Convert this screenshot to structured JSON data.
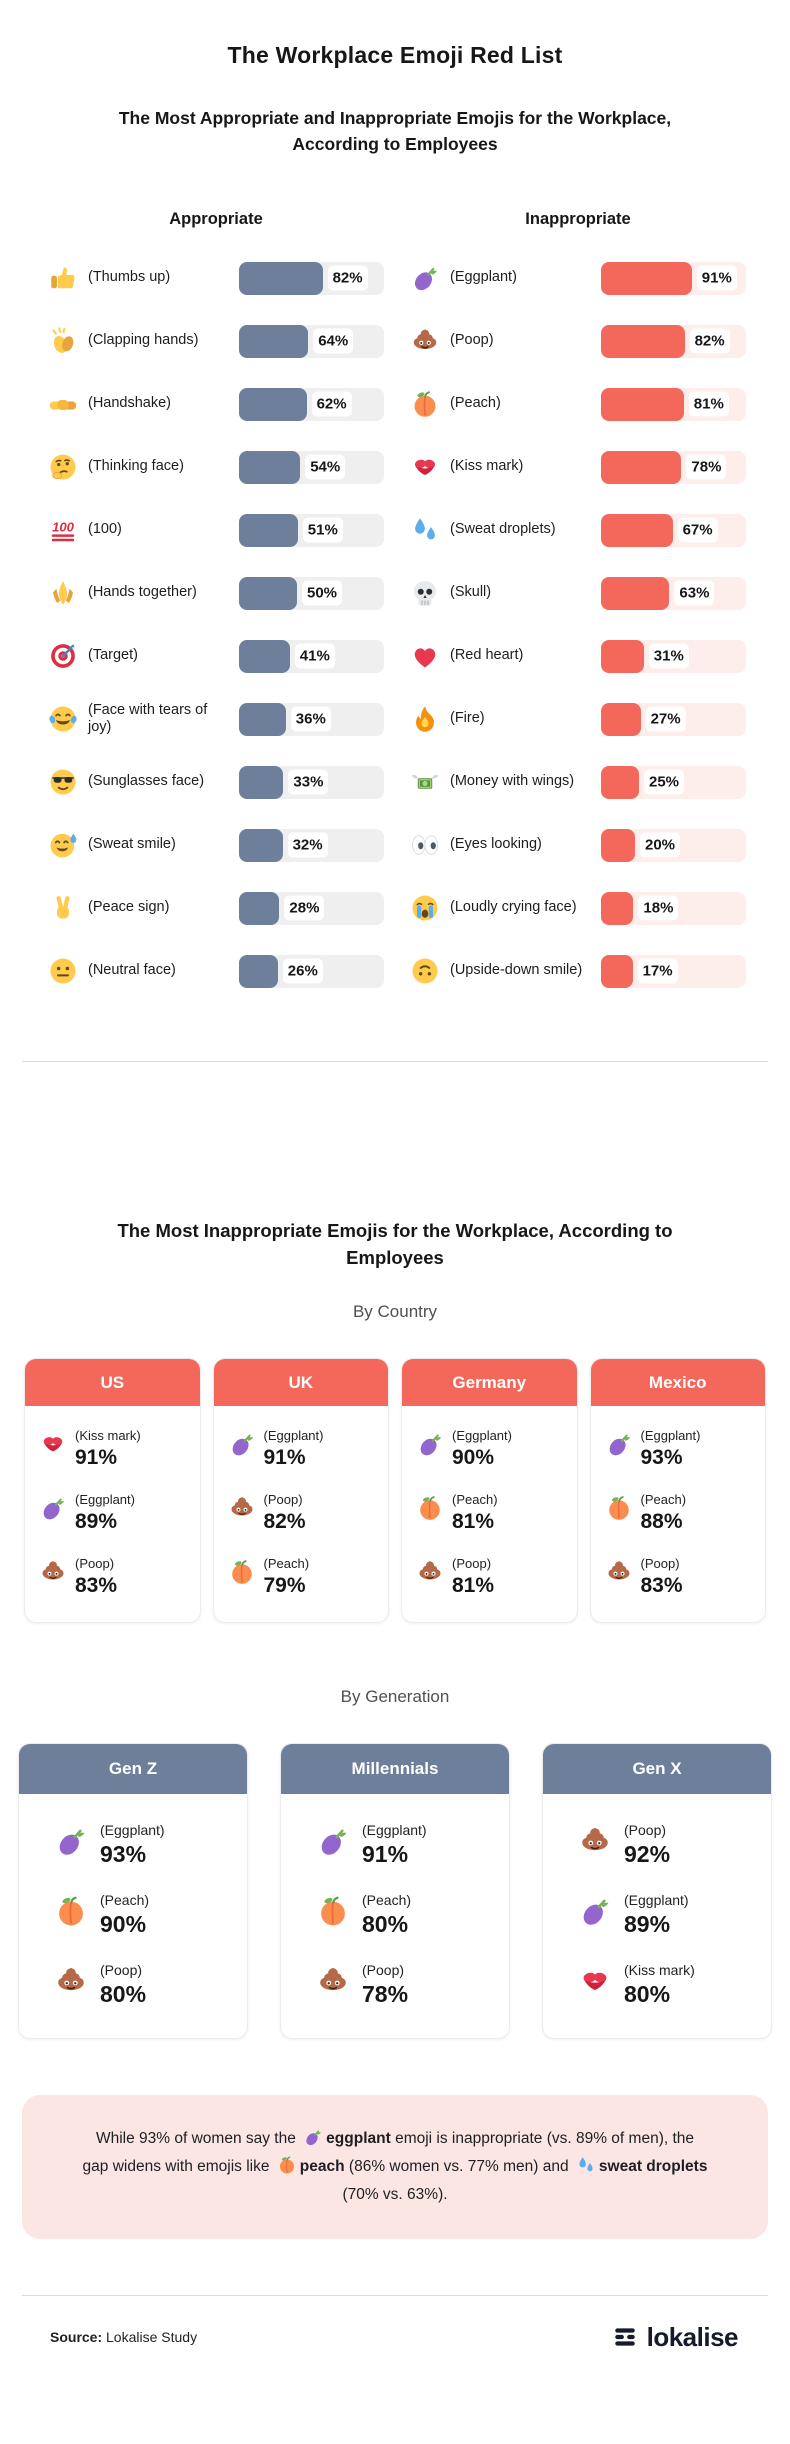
{
  "header": {
    "title": "The Workplace Emoji Red List",
    "subtitle": "The Most Appropriate and Inappropriate Emojis for the Workplace, According to Employees"
  },
  "section2": {
    "title": "The Most Inappropriate Emojis for the Workplace, According to Employees"
  },
  "chart_data": [
    {
      "type": "bar",
      "title": "Appropriate",
      "orientation": "horizontal",
      "unit": "percent",
      "xlim": [
        0,
        100
      ],
      "categories": [
        "Thumbs up",
        "Clapping hands",
        "Handshake",
        "Thinking face",
        "100",
        "Hands together",
        "Target",
        "Face with tears of joy",
        "Sunglasses face",
        "Sweat smile",
        "Peace sign",
        "Neutral face"
      ],
      "values": [
        82,
        64,
        62,
        54,
        51,
        50,
        41,
        36,
        33,
        32,
        28,
        26
      ],
      "rows": [
        {
          "icon": "thumbs-up",
          "label": "(Thumbs up)",
          "value": 82,
          "pct": "82%"
        },
        {
          "icon": "clapping-hands",
          "label": "(Clapping hands)",
          "value": 64,
          "pct": "64%"
        },
        {
          "icon": "handshake",
          "label": "(Handshake)",
          "value": 62,
          "pct": "62%"
        },
        {
          "icon": "thinking-face",
          "label": "(Thinking face)",
          "value": 54,
          "pct": "54%"
        },
        {
          "icon": "hundred",
          "label": "(100)",
          "value": 51,
          "pct": "51%"
        },
        {
          "icon": "hands-together",
          "label": "(Hands together)",
          "value": 50,
          "pct": "50%"
        },
        {
          "icon": "target",
          "label": "(Target)",
          "value": 41,
          "pct": "41%"
        },
        {
          "icon": "face-tears-of-joy",
          "label": "(Face with tears of joy)",
          "value": 36,
          "pct": "36%"
        },
        {
          "icon": "sunglasses-face",
          "label": "(Sunglasses face)",
          "value": 33,
          "pct": "33%"
        },
        {
          "icon": "sweat-smile",
          "label": "(Sweat smile)",
          "value": 32,
          "pct": "32%"
        },
        {
          "icon": "peace-sign",
          "label": "(Peace sign)",
          "value": 28,
          "pct": "28%"
        },
        {
          "icon": "neutral-face",
          "label": "(Neutral face)",
          "value": 26,
          "pct": "26%"
        }
      ]
    },
    {
      "type": "bar",
      "title": "Inappropriate",
      "orientation": "horizontal",
      "unit": "percent",
      "xlim": [
        0,
        100
      ],
      "categories": [
        "Eggplant",
        "Poop",
        "Peach",
        "Kiss mark",
        "Sweat droplets",
        "Skull",
        "Red heart",
        "Fire",
        "Money with wings",
        "Eyes looking",
        "Loudly crying face",
        "Upside-down smile"
      ],
      "values": [
        91,
        82,
        81,
        78,
        67,
        63,
        31,
        27,
        25,
        20,
        18,
        17
      ],
      "rows": [
        {
          "icon": "eggplant",
          "label": "(Eggplant)",
          "value": 91,
          "pct": "91%"
        },
        {
          "icon": "poop",
          "label": "(Poop)",
          "value": 82,
          "pct": "82%"
        },
        {
          "icon": "peach",
          "label": "(Peach)",
          "value": 81,
          "pct": "81%"
        },
        {
          "icon": "kiss-mark",
          "label": "(Kiss mark)",
          "value": 78,
          "pct": "78%"
        },
        {
          "icon": "sweat-droplets",
          "label": "(Sweat droplets)",
          "value": 67,
          "pct": "67%"
        },
        {
          "icon": "skull",
          "label": "(Skull)",
          "value": 63,
          "pct": "63%"
        },
        {
          "icon": "red-heart",
          "label": "(Red heart)",
          "value": 31,
          "pct": "31%"
        },
        {
          "icon": "fire",
          "label": "(Fire)",
          "value": 27,
          "pct": "27%"
        },
        {
          "icon": "money-with-wings",
          "label": "(Money with wings)",
          "value": 25,
          "pct": "25%"
        },
        {
          "icon": "eyes-looking",
          "label": "(Eyes looking)",
          "value": 20,
          "pct": "20%"
        },
        {
          "icon": "loudly-crying-face",
          "label": "(Loudly crying face)",
          "value": 18,
          "pct": "18%"
        },
        {
          "icon": "upside-down-smile",
          "label": "(Upside-down smile)",
          "value": 17,
          "pct": "17%"
        }
      ]
    },
    {
      "type": "table",
      "title": "By Country",
      "groups": [
        {
          "name": "US",
          "items": [
            {
              "icon": "kiss-mark",
              "label": "(Kiss mark)",
              "value": 91,
              "pct": "91%"
            },
            {
              "icon": "eggplant",
              "label": "(Eggplant)",
              "value": 89,
              "pct": "89%"
            },
            {
              "icon": "poop",
              "label": "(Poop)",
              "value": 83,
              "pct": "83%"
            }
          ]
        },
        {
          "name": "UK",
          "items": [
            {
              "icon": "eggplant",
              "label": "(Eggplant)",
              "value": 91,
              "pct": "91%"
            },
            {
              "icon": "poop",
              "label": "(Poop)",
              "value": 82,
              "pct": "82%"
            },
            {
              "icon": "peach",
              "label": "(Peach)",
              "value": 79,
              "pct": "79%"
            }
          ]
        },
        {
          "name": "Germany",
          "items": [
            {
              "icon": "eggplant",
              "label": "(Eggplant)",
              "value": 90,
              "pct": "90%"
            },
            {
              "icon": "peach",
              "label": "(Peach)",
              "value": 81,
              "pct": "81%"
            },
            {
              "icon": "poop",
              "label": "(Poop)",
              "value": 81,
              "pct": "81%"
            }
          ]
        },
        {
          "name": "Mexico",
          "items": [
            {
              "icon": "eggplant",
              "label": "(Eggplant)",
              "value": 93,
              "pct": "93%"
            },
            {
              "icon": "peach",
              "label": "(Peach)",
              "value": 88,
              "pct": "88%"
            },
            {
              "icon": "poop",
              "label": "(Poop)",
              "value": 83,
              "pct": "83%"
            }
          ]
        }
      ]
    },
    {
      "type": "table",
      "title": "By Generation",
      "groups": [
        {
          "name": "Gen Z",
          "items": [
            {
              "icon": "eggplant",
              "label": "(Eggplant)",
              "value": 93,
              "pct": "93%"
            },
            {
              "icon": "peach",
              "label": "(Peach)",
              "value": 90,
              "pct": "90%"
            },
            {
              "icon": "poop",
              "label": "(Poop)",
              "value": 80,
              "pct": "80%"
            }
          ]
        },
        {
          "name": "Millennials",
          "items": [
            {
              "icon": "eggplant",
              "label": "(Eggplant)",
              "value": 91,
              "pct": "91%"
            },
            {
              "icon": "peach",
              "label": "(Peach)",
              "value": 80,
              "pct": "80%"
            },
            {
              "icon": "poop",
              "label": "(Poop)",
              "value": 78,
              "pct": "78%"
            }
          ]
        },
        {
          "name": "Gen X",
          "items": [
            {
              "icon": "poop",
              "label": "(Poop)",
              "value": 92,
              "pct": "92%"
            },
            {
              "icon": "eggplant",
              "label": "(Eggplant)",
              "value": 89,
              "pct": "89%"
            },
            {
              "icon": "kiss-mark",
              "label": "(Kiss mark)",
              "value": 80,
              "pct": "80%"
            }
          ]
        }
      ]
    }
  ],
  "callout": {
    "segments": [
      {
        "text": "While 93% of women say the "
      },
      {
        "icon": "eggplant"
      },
      {
        "text": "eggplant",
        "bold": true
      },
      {
        "text": " emoji is inappropriate (vs. 89% of men), the gap widens with emojis like "
      },
      {
        "icon": "peach"
      },
      {
        "text": "peach",
        "bold": true
      },
      {
        "text": " (86% women vs. 77% men) and "
      },
      {
        "icon": "sweat-droplets"
      },
      {
        "text": "sweat droplets",
        "bold": true
      },
      {
        "text": " (70% vs. 63%)."
      }
    ]
  },
  "footer": {
    "source_label": "Source:",
    "source_value": "Lokalise Study",
    "logo_text": "lokalise"
  },
  "colors": {
    "appropriate_bar": "#6e7f9c",
    "appropriate_track": "#efefef",
    "inappropriate_bar": "#f4685c",
    "inappropriate_track": "#fdeeec",
    "country_header": "#f4685c",
    "generation_header": "#6e7f9c",
    "callout_bg": "#fbe6e3",
    "logo_color": "#151a2d"
  }
}
